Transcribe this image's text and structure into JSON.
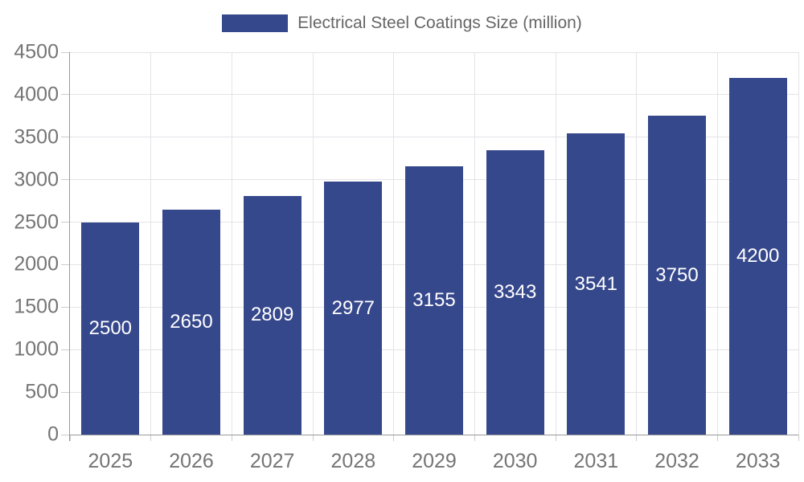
{
  "chart_data": {
    "type": "bar",
    "title": "Electrical Steel Coatings Size (million)",
    "legend": [
      {
        "label": "Electrical Steel Coatings Size (million)",
        "color": "#36488C"
      }
    ],
    "legend_position": "top-center",
    "categories": [
      "2025",
      "2026",
      "2027",
      "2028",
      "2029",
      "2030",
      "2031",
      "2032",
      "2033"
    ],
    "series": [
      {
        "name": "Electrical Steel Coatings Size (million)",
        "values": [
          2500,
          2650,
          2809,
          2977,
          3155,
          3343,
          3541,
          3750,
          4200
        ]
      }
    ],
    "xlabel": "",
    "ylabel": "",
    "ylim": [
      0,
      4500
    ],
    "ytick_step": 500,
    "yticks": [
      0,
      500,
      1000,
      1500,
      2000,
      2500,
      3000,
      3500,
      4000,
      4500
    ],
    "grid": true,
    "bar_labels_inside": true,
    "colors": {
      "bar": "#36488C",
      "bar_label": "#ffffff",
      "axis_label": "#757575",
      "legend_text": "#666666",
      "gridline": "#e4e4e8",
      "axis_line": "#9a9a9a",
      "tick": "#cccccc",
      "background": "#ffffff"
    }
  }
}
